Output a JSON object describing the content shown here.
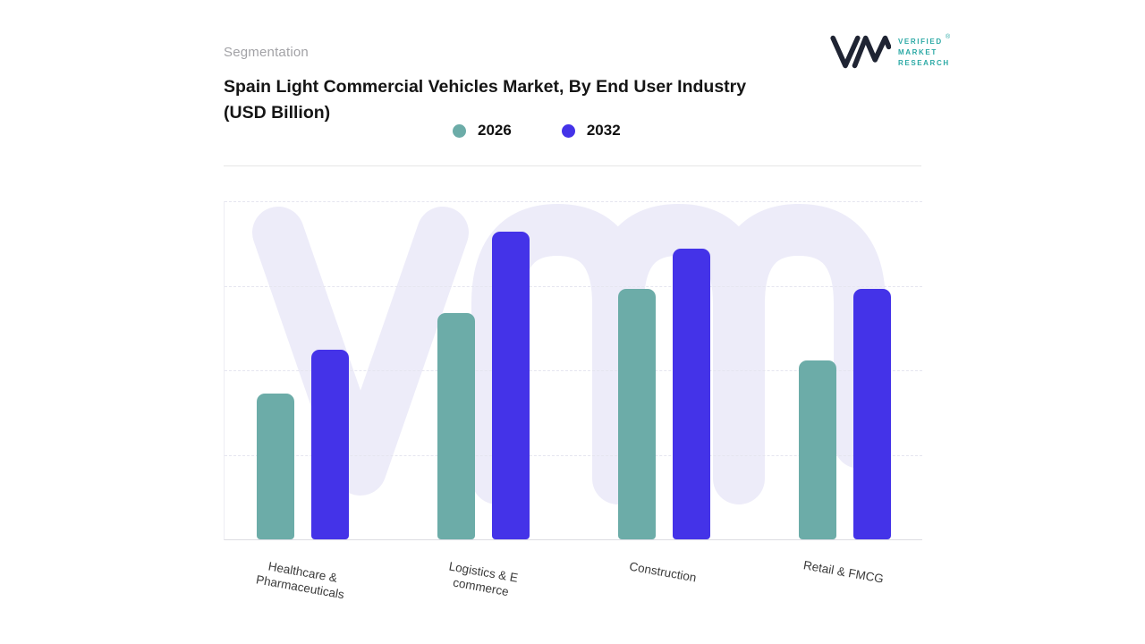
{
  "header": {
    "eyebrow": "Segmentation",
    "title": "Spain Light Commercial Vehicles Market, By End User Industry",
    "subtitle": "(USD Billion)"
  },
  "logo": {
    "lines": [
      "VERIFIED",
      "MARKET",
      "RESEARCH"
    ],
    "registered": "®",
    "text_color": "#2ba9a5",
    "mark_color": "#1f2433"
  },
  "watermark": {
    "text": "vm",
    "color": "#edecf9"
  },
  "chart_data": {
    "type": "bar",
    "title": "Spain Light Commercial Vehicles Market, By End User Industry (USD Billion)",
    "categories": [
      "Healthcare & Pharmaceuticals",
      "Logistics & E commerce",
      "Construction",
      "Retail & FMCG"
    ],
    "category_label_lines": [
      [
        "Healthcare &",
        "Pharmaceuticals"
      ],
      [
        "Logistics & E",
        "commerce"
      ],
      [
        "Construction"
      ],
      [
        "Retail & FMCG"
      ]
    ],
    "series": [
      {
        "name": "2026",
        "color": "#6caca8",
        "values": [
          4.3,
          6.7,
          7.4,
          5.3
        ]
      },
      {
        "name": "2032",
        "color": "#4433e8",
        "values": [
          5.6,
          9.1,
          8.6,
          7.4
        ]
      }
    ],
    "ylim": [
      0,
      10
    ],
    "ylabel": "",
    "xlabel": "",
    "y_axis_tick_labels_visible": false,
    "gridlines": {
      "style": "dashed",
      "count": 4
    },
    "legend_position": "top-center"
  }
}
